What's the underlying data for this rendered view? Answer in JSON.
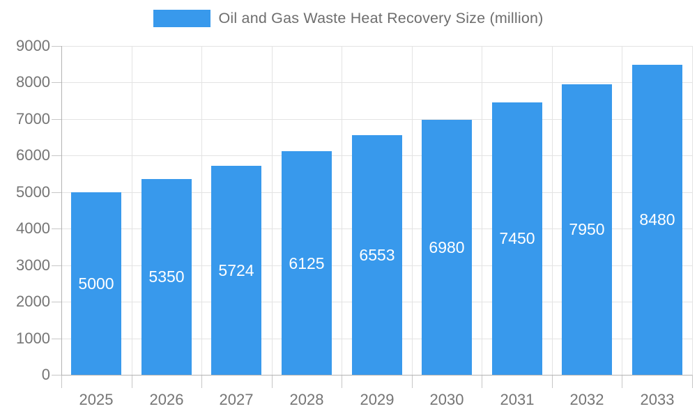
{
  "legend": {
    "label": "Oil and Gas Waste Heat Recovery Size (million)"
  },
  "chart_data": {
    "type": "bar",
    "title": "Oil and Gas Waste Heat Recovery Size (million)",
    "categories": [
      "2025",
      "2026",
      "2027",
      "2028",
      "2029",
      "2030",
      "2031",
      "2032",
      "2033"
    ],
    "values": [
      5000,
      5350,
      5724,
      6125,
      6553,
      6980,
      7450,
      7950,
      8480
    ],
    "value_labels": [
      "5000",
      "5350",
      "5724",
      "6125",
      "6553",
      "6980",
      "7450",
      "7950",
      "8480"
    ],
    "xlabel": "",
    "ylabel": "",
    "ylim": [
      0,
      9000
    ],
    "ytick_step": 1000,
    "ytick_labels": [
      "0",
      "1000",
      "2000",
      "3000",
      "4000",
      "5000",
      "6000",
      "7000",
      "8000",
      "9000"
    ],
    "grid": true,
    "legend_position": "top-center",
    "colors": {
      "bar": "#3899EC",
      "value_label": "#FFFFFF",
      "axis_line": "#B3B3B3",
      "gridline": "#E3E3E3",
      "tick_mark": "#C6C6C6",
      "tick_label": "#757575",
      "legend_text": "#6E6E6E"
    }
  }
}
